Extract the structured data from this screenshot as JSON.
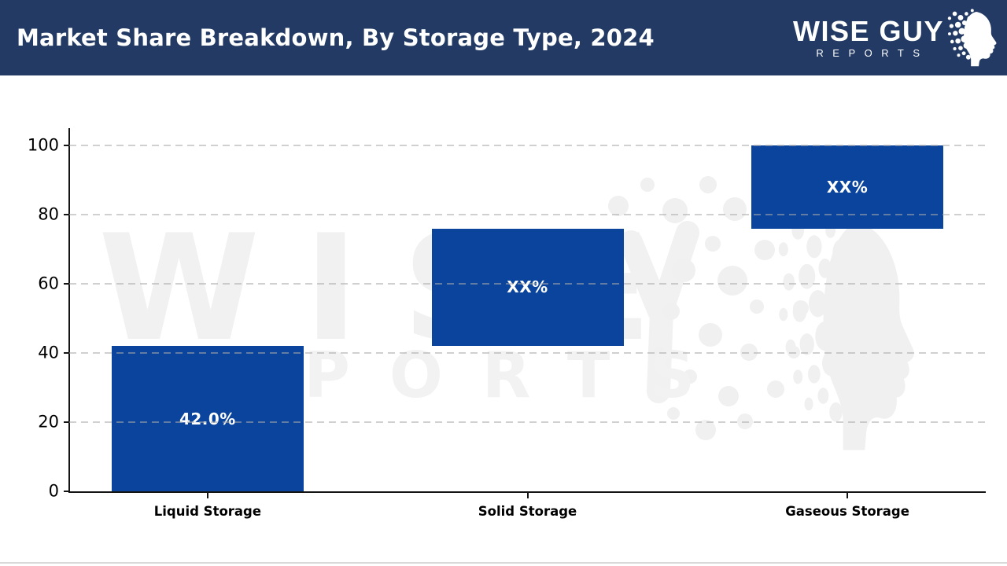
{
  "header": {
    "title": "Market Share Breakdown, By Storage Type, 2024",
    "logo": {
      "line1": "WISE GUY",
      "line2": "REPORTS"
    }
  },
  "watermark": {
    "text_top": "WISE",
    "text_bottom": "REPORTS"
  },
  "chart_data": {
    "type": "bar",
    "subtype": "waterfall",
    "title": "Market Share Breakdown, By Storage Type, 2024",
    "categories": [
      "Liquid Storage",
      "Solid Storage",
      "Gaseous Storage"
    ],
    "bars": [
      {
        "category": "Liquid Storage",
        "start": 0,
        "end": 42,
        "label": "42.0%"
      },
      {
        "category": "Solid Storage",
        "start": 42,
        "end": 76,
        "label": "XX%"
      },
      {
        "category": "Gaseous Storage",
        "start": 76,
        "end": 100,
        "label": "XX%"
      }
    ],
    "yticks": [
      0,
      20,
      40,
      60,
      80,
      100
    ],
    "ylim": [
      0,
      105
    ],
    "xlabel": "",
    "ylabel": "",
    "grid": "horizontal-dashed",
    "legend": "none",
    "colors": {
      "bar": "#0B449D",
      "header_bg": "#223A64",
      "grid": "#d8d8d8",
      "axis": "#141414",
      "bar_label": "#ffffff",
      "watermark": "#f1f1f1"
    }
  }
}
